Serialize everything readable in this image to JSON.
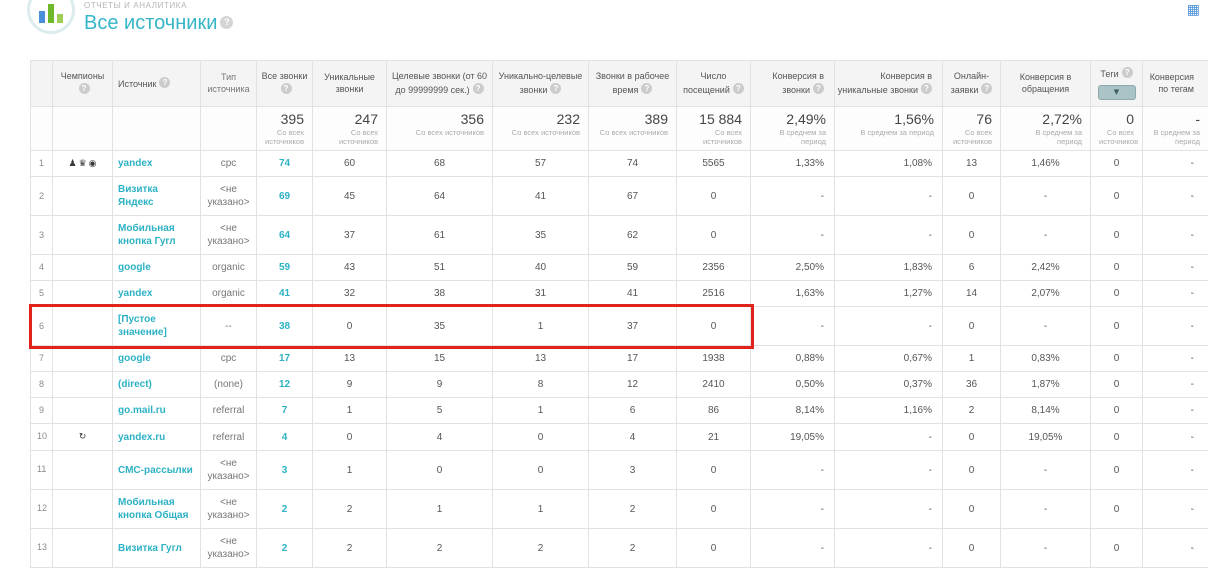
{
  "header": {
    "breadcrumb": "Отчеты и Аналитика",
    "title": "Все источники",
    "help": "?",
    "columns_icon": "▦"
  },
  "table": {
    "tags_button_glyph": "▼",
    "columns": [
      {
        "id": "num",
        "label": "",
        "help": false
      },
      {
        "id": "champions",
        "label": "Чемпионы",
        "help": true
      },
      {
        "id": "source",
        "label": "Источник",
        "help": true
      },
      {
        "id": "type",
        "label": "Тип источника",
        "help": false
      },
      {
        "id": "all_calls",
        "label": "Все звонки",
        "help": true
      },
      {
        "id": "unique_calls",
        "label": "Уникальные звонки",
        "help": false
      },
      {
        "id": "target_calls",
        "label": "Целевые звонки (от 60 до 99999999 сек.)",
        "help": true
      },
      {
        "id": "unique_target_calls",
        "label": "Уникально-целевые звонки",
        "help": true
      },
      {
        "id": "work_time_calls",
        "label": "Звонки в рабочее время",
        "help": true
      },
      {
        "id": "visits",
        "label": "Число посещений",
        "help": true
      },
      {
        "id": "conv_calls",
        "label": "Конверсия в звонки",
        "help": true
      },
      {
        "id": "conv_unique_calls",
        "label": "Конверсия в уникальные звонки",
        "help": true
      },
      {
        "id": "online_requests",
        "label": "Онлайн-заявки",
        "help": true
      },
      {
        "id": "conv_appeals",
        "label": "Конверсия в обращения",
        "help": false
      },
      {
        "id": "tags",
        "label": "Теги",
        "help": true,
        "dropdown": true
      },
      {
        "id": "conv_tags",
        "label": "Конверсия по тегам",
        "help": false
      }
    ],
    "summary": {
      "all_calls": {
        "value": "395",
        "note": "Со всех источников"
      },
      "unique_calls": {
        "value": "247",
        "note": "Со всех источников"
      },
      "target_calls": {
        "value": "356",
        "note": "Со всех источников"
      },
      "unique_target_calls": {
        "value": "232",
        "note": "Со всех источников"
      },
      "work_time_calls": {
        "value": "389",
        "note": "Со всех источников"
      },
      "visits": {
        "value": "15 884",
        "note": "Со всех источников"
      },
      "conv_calls": {
        "value": "2,49%",
        "note": "В среднем за период"
      },
      "conv_unique_calls": {
        "value": "1,56%",
        "note": "В среднем за период"
      },
      "online_requests": {
        "value": "76",
        "note": "Со всех источников"
      },
      "conv_appeals": {
        "value": "2,72%",
        "note": "В среднем за период"
      },
      "tags": {
        "value": "0",
        "note": "Со всех источников"
      },
      "conv_tags": {
        "value": "-",
        "note": "В среднем за период"
      }
    },
    "rows": [
      {
        "num": "1",
        "champions": [
          {
            "name": "bell-icon",
            "glyph": "♟"
          },
          {
            "name": "cup-icon",
            "glyph": "♛"
          },
          {
            "name": "info-icon",
            "glyph": "◉"
          }
        ],
        "source": "yandex",
        "type": "cpc",
        "all_calls": "74",
        "unique_calls": "60",
        "target_calls": "68",
        "unique_target_calls": "57",
        "work_time_calls": "74",
        "visits": "5565",
        "conv_calls": "1,33%",
        "conv_unique_calls": "1,08%",
        "online_requests": "13",
        "conv_appeals": "1,46%",
        "tags": "0",
        "conv_tags": "-",
        "highlighted": false
      },
      {
        "num": "2",
        "champions": [],
        "source": "Визитка Яндекс",
        "type": "<не указано>",
        "all_calls": "69",
        "unique_calls": "45",
        "target_calls": "64",
        "unique_target_calls": "41",
        "work_time_calls": "67",
        "visits": "0",
        "conv_calls": "-",
        "conv_unique_calls": "-",
        "online_requests": "0",
        "conv_appeals": "-",
        "tags": "0",
        "conv_tags": "-",
        "highlighted": false
      },
      {
        "num": "3",
        "champions": [],
        "source": "Мобильная кнопка Гугл",
        "type": "<не указано>",
        "all_calls": "64",
        "unique_calls": "37",
        "target_calls": "61",
        "unique_target_calls": "35",
        "work_time_calls": "62",
        "visits": "0",
        "conv_calls": "-",
        "conv_unique_calls": "-",
        "online_requests": "0",
        "conv_appeals": "-",
        "tags": "0",
        "conv_tags": "-",
        "highlighted": false
      },
      {
        "num": "4",
        "champions": [],
        "source": "google",
        "type": "organic",
        "all_calls": "59",
        "unique_calls": "43",
        "target_calls": "51",
        "unique_target_calls": "40",
        "work_time_calls": "59",
        "visits": "2356",
        "conv_calls": "2,50%",
        "conv_unique_calls": "1,83%",
        "online_requests": "6",
        "conv_appeals": "2,42%",
        "tags": "0",
        "conv_tags": "-",
        "highlighted": false
      },
      {
        "num": "5",
        "champions": [],
        "source": "yandex",
        "type": "organic",
        "all_calls": "41",
        "unique_calls": "32",
        "target_calls": "38",
        "unique_target_calls": "31",
        "work_time_calls": "41",
        "visits": "2516",
        "conv_calls": "1,63%",
        "conv_unique_calls": "1,27%",
        "online_requests": "14",
        "conv_appeals": "2,07%",
        "tags": "0",
        "conv_tags": "-",
        "highlighted": false
      },
      {
        "num": "6",
        "champions": [],
        "source": "[Пустое значение]",
        "type": "--",
        "all_calls": "38",
        "unique_calls": "0",
        "target_calls": "35",
        "unique_target_calls": "1",
        "work_time_calls": "37",
        "visits": "0",
        "conv_calls": "-",
        "conv_unique_calls": "-",
        "online_requests": "0",
        "conv_appeals": "-",
        "tags": "0",
        "conv_tags": "-",
        "highlighted": true
      },
      {
        "num": "7",
        "champions": [],
        "source": "google",
        "type": "cpc",
        "all_calls": "17",
        "unique_calls": "13",
        "target_calls": "15",
        "unique_target_calls": "13",
        "work_time_calls": "17",
        "visits": "1938",
        "conv_calls": "0,88%",
        "conv_unique_calls": "0,67%",
        "online_requests": "1",
        "conv_appeals": "0,83%",
        "tags": "0",
        "conv_tags": "-",
        "highlighted": false
      },
      {
        "num": "8",
        "champions": [],
        "source": "(direct)",
        "type": "(none)",
        "all_calls": "12",
        "unique_calls": "9",
        "target_calls": "9",
        "unique_target_calls": "8",
        "work_time_calls": "12",
        "visits": "2410",
        "conv_calls": "0,50%",
        "conv_unique_calls": "0,37%",
        "online_requests": "36",
        "conv_appeals": "1,87%",
        "tags": "0",
        "conv_tags": "-",
        "highlighted": false
      },
      {
        "num": "9",
        "champions": [],
        "source": "go.mail.ru",
        "type": "referral",
        "all_calls": "7",
        "unique_calls": "1",
        "target_calls": "5",
        "unique_target_calls": "1",
        "work_time_calls": "6",
        "visits": "86",
        "conv_calls": "8,14%",
        "conv_unique_calls": "1,16%",
        "online_requests": "2",
        "conv_appeals": "8,14%",
        "tags": "0",
        "conv_tags": "-",
        "highlighted": false
      },
      {
        "num": "10",
        "champions": [
          {
            "name": "refresh-icon",
            "glyph": "↻"
          }
        ],
        "source": "yandex.ru",
        "type": "referral",
        "all_calls": "4",
        "unique_calls": "0",
        "target_calls": "4",
        "unique_target_calls": "0",
        "work_time_calls": "4",
        "visits": "21",
        "conv_calls": "19,05%",
        "conv_unique_calls": "-",
        "online_requests": "0",
        "conv_appeals": "19,05%",
        "tags": "0",
        "conv_tags": "-",
        "highlighted": false
      },
      {
        "num": "11",
        "champions": [],
        "source": "СМС-рассылки",
        "type": "<не указано>",
        "all_calls": "3",
        "unique_calls": "1",
        "target_calls": "0",
        "unique_target_calls": "0",
        "work_time_calls": "3",
        "visits": "0",
        "conv_calls": "-",
        "conv_unique_calls": "-",
        "online_requests": "0",
        "conv_appeals": "-",
        "tags": "0",
        "conv_tags": "-",
        "highlighted": false
      },
      {
        "num": "12",
        "champions": [],
        "source": "Мобильная кнопка Общая",
        "type": "<не указано>",
        "all_calls": "2",
        "unique_calls": "2",
        "target_calls": "1",
        "unique_target_calls": "1",
        "work_time_calls": "2",
        "visits": "0",
        "conv_calls": "-",
        "conv_unique_calls": "-",
        "online_requests": "0",
        "conv_appeals": "-",
        "tags": "0",
        "conv_tags": "-",
        "highlighted": false
      },
      {
        "num": "13",
        "champions": [],
        "source": "Визитка Гугл",
        "type": "<не указано>",
        "all_calls": "2",
        "unique_calls": "2",
        "target_calls": "2",
        "unique_target_calls": "2",
        "work_time_calls": "2",
        "visits": "0",
        "conv_calls": "-",
        "conv_unique_calls": "-",
        "online_requests": "0",
        "conv_appeals": "-",
        "tags": "0",
        "conv_tags": "-",
        "highlighted": false
      }
    ]
  }
}
